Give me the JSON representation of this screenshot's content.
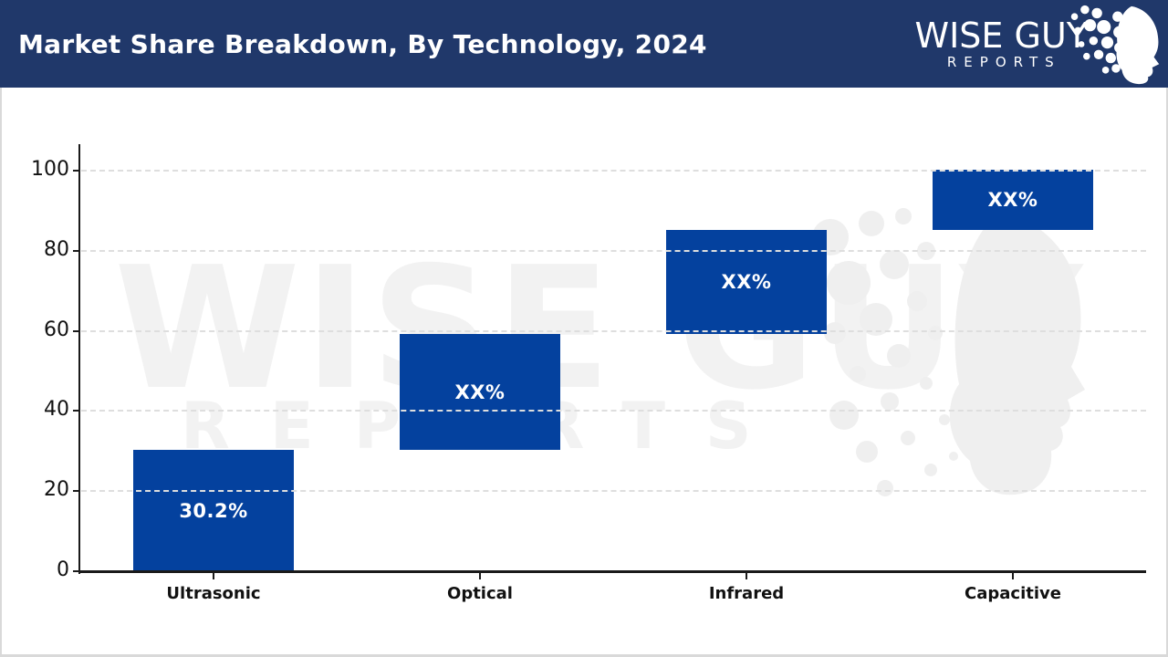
{
  "header": {
    "title": "Market Share Breakdown, By Technology, 2024",
    "logo": {
      "name": "WISE GUY",
      "tagline": "REPORTS"
    }
  },
  "watermark": {
    "name": "WISE GUY",
    "tagline": "REPORTS"
  },
  "chart_data": {
    "type": "bar",
    "subtype": "waterfall",
    "title": "Market Share Breakdown, By Technology, 2024",
    "categories": [
      "Ultrasonic",
      "Optical",
      "Infrared",
      "Capacitive"
    ],
    "segments": [
      {
        "category": "Ultrasonic",
        "start": 0,
        "end": 30.2,
        "label": "30.2%"
      },
      {
        "category": "Optical",
        "start": 30.2,
        "end": 59.2,
        "label": "XX%"
      },
      {
        "category": "Infrared",
        "start": 59.2,
        "end": 85.1,
        "label": "XX%"
      },
      {
        "category": "Capacitive",
        "start": 85.1,
        "end": 100.3,
        "label": "XX%"
      }
    ],
    "xlabel": "",
    "ylabel": "",
    "ylim": [
      0,
      106
    ],
    "yticks": [
      0,
      20,
      40,
      60,
      80,
      100
    ],
    "grid": "horizontal-dashed",
    "legend": "none",
    "bar_color": "#04419e",
    "bar_label_color": "#ffffff"
  },
  "colors": {
    "header_bg": "#20386a",
    "bar_blue": "#04419e",
    "grid_line": "#dedede",
    "axis_line": "#1a1a1a",
    "watermark": "#f2f2f2",
    "frame_border": "#d9d9d9",
    "tick_text": "#111111"
  }
}
